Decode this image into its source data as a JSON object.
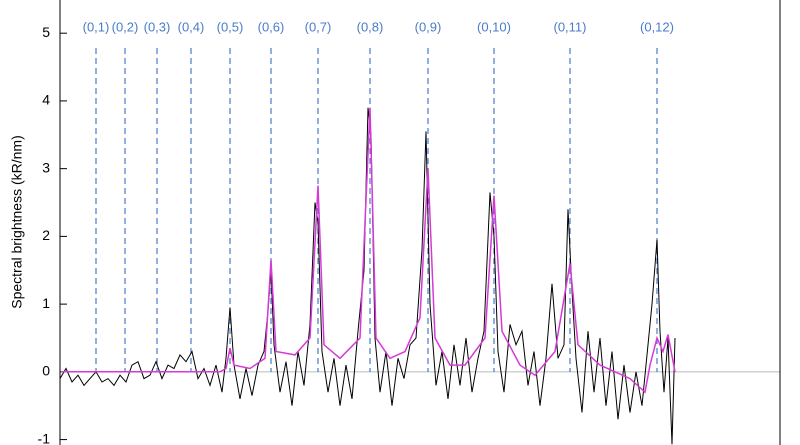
{
  "chart_data": {
    "type": "line",
    "ylabel": "Spectral brightness (kR/nm)",
    "ylim": [
      -1.08,
      5.49
    ],
    "yticks": [
      -1,
      0,
      1,
      2,
      3,
      4,
      5
    ],
    "xlim": [
      0,
      720
    ],
    "zero_line": true,
    "bands": {
      "labels": [
        "(0,1)",
        "(0,2)",
        "(0,3)",
        "(0,4)",
        "(0,5)",
        "(0,6)",
        "(0,7)",
        "(0,8)",
        "(0,9)",
        "(0,10)",
        "(0,11)",
        "(0,12)"
      ],
      "x": [
        36,
        65,
        97,
        131,
        170,
        211,
        258,
        310,
        368,
        434,
        510,
        597
      ],
      "color": "#4a7cc9"
    },
    "series": [
      {
        "color": "#000000",
        "x": [
          0,
          6,
          12,
          18,
          24,
          30,
          36,
          42,
          48,
          54,
          60,
          66,
          72,
          78,
          84,
          90,
          96,
          102,
          108,
          114,
          120,
          126,
          132,
          138,
          144,
          150,
          156,
          162,
          166,
          170,
          174,
          180,
          186,
          192,
          198,
          204,
          208,
          211,
          214,
          220,
          226,
          232,
          238,
          244,
          250,
          255,
          258,
          262,
          268,
          274,
          280,
          286,
          292,
          298,
          304,
          308,
          311,
          315,
          320,
          326,
          332,
          338,
          344,
          350,
          356,
          362,
          366,
          370,
          376,
          382,
          388,
          394,
          400,
          406,
          412,
          418,
          424,
          430,
          434,
          438,
          444,
          450,
          456,
          462,
          468,
          474,
          480,
          486,
          492,
          498,
          504,
          508,
          512,
          516,
          522,
          528,
          534,
          540,
          546,
          552,
          558,
          564,
          570,
          576,
          582,
          588,
          592,
          597,
          600,
          604,
          608,
          612,
          615
        ],
        "values": [
          -0.1,
          0.05,
          -0.15,
          -0.05,
          -0.2,
          -0.1,
          0.0,
          -0.15,
          -0.1,
          -0.2,
          -0.05,
          -0.15,
          0.1,
          0.15,
          -0.1,
          -0.05,
          0.15,
          -0.1,
          0.1,
          0.05,
          0.25,
          0.15,
          0.3,
          -0.1,
          0.05,
          -0.2,
          0.1,
          -0.3,
          0.2,
          0.95,
          0.1,
          -0.4,
          0.05,
          -0.35,
          0.1,
          0.3,
          0.9,
          1.5,
          0.4,
          -0.3,
          0.15,
          -0.5,
          0.3,
          -0.2,
          0.7,
          2.5,
          2.2,
          0.3,
          -0.3,
          0.2,
          -0.5,
          0.1,
          -0.4,
          0.6,
          1.5,
          3.9,
          3.5,
          0.5,
          -0.3,
          0.3,
          -0.5,
          0.2,
          -0.1,
          0.4,
          0.5,
          1.8,
          3.55,
          1.0,
          -0.2,
          0.3,
          -0.4,
          0.4,
          -0.2,
          0.5,
          -0.3,
          0.2,
          0.6,
          2.65,
          2.0,
          0.3,
          -0.3,
          0.7,
          0.4,
          0.6,
          -0.2,
          0.3,
          -0.5,
          0.2,
          1.3,
          0.2,
          0.4,
          2.4,
          1.2,
          0.2,
          -0.6,
          0.6,
          -0.3,
          0.5,
          -0.5,
          0.3,
          -0.7,
          0.1,
          -0.6,
          0.0,
          -0.5,
          0.4,
          1.0,
          1.95,
          0.6,
          -0.3,
          0.5,
          -1.07,
          0.5
        ]
      },
      {
        "color": "#d63ad6",
        "x": [
          0,
          100,
          160,
          166,
          170,
          174,
          190,
          205,
          211,
          216,
          235,
          250,
          258,
          264,
          280,
          300,
          310,
          316,
          330,
          345,
          360,
          368,
          375,
          390,
          405,
          425,
          434,
          442,
          460,
          475,
          495,
          510,
          518,
          540,
          570,
          585,
          590,
          597,
          603,
          608,
          615
        ],
        "values": [
          0,
          0,
          0,
          0.05,
          0.35,
          0.1,
          0.05,
          0.2,
          1.65,
          0.3,
          0.25,
          0.5,
          2.75,
          0.4,
          0.2,
          0.5,
          3.9,
          0.5,
          0.2,
          0.3,
          0.8,
          3.0,
          0.5,
          0.1,
          0.1,
          0.5,
          2.6,
          0.6,
          0.1,
          -0.05,
          0.3,
          1.6,
          0.4,
          0.1,
          -0.1,
          -0.3,
          0.1,
          0.5,
          0.3,
          0.55,
          0.0
        ]
      }
    ]
  }
}
